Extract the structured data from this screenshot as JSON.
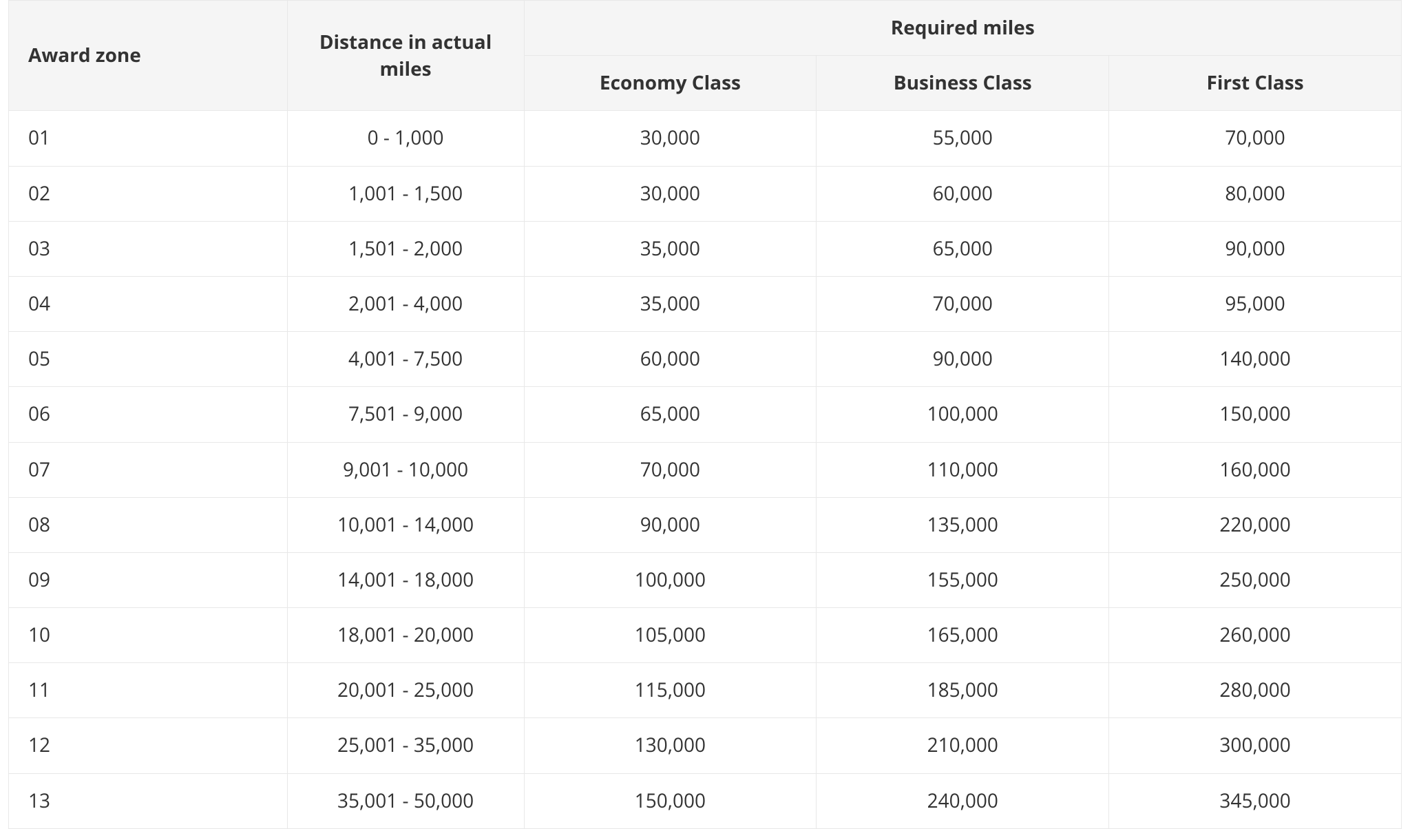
{
  "table": {
    "type": "table",
    "background_color": "#ffffff",
    "header_background_color": "#f5f5f5",
    "border_color": "#e8e8e8",
    "text_color": "#333333",
    "header_font_weight": 700,
    "body_font_weight": 400,
    "font_size_pt": 21,
    "column_widths_pct": [
      20,
      17,
      21,
      21,
      21
    ],
    "columns": {
      "award_zone": "Award zone",
      "distance": "Distance in actual miles",
      "required_miles": "Required miles",
      "economy": "Economy Class",
      "business": "Business Class",
      "first": "First Class"
    },
    "rows": [
      {
        "zone": "01",
        "distance": "0 - 1,000",
        "economy": "30,000",
        "business": "55,000",
        "first": "70,000"
      },
      {
        "zone": "02",
        "distance": "1,001 - 1,500",
        "economy": "30,000",
        "business": "60,000",
        "first": "80,000"
      },
      {
        "zone": "03",
        "distance": "1,501 - 2,000",
        "economy": "35,000",
        "business": "65,000",
        "first": "90,000"
      },
      {
        "zone": "04",
        "distance": "2,001 - 4,000",
        "economy": "35,000",
        "business": "70,000",
        "first": "95,000"
      },
      {
        "zone": "05",
        "distance": "4,001 - 7,500",
        "economy": "60,000",
        "business": "90,000",
        "first": "140,000"
      },
      {
        "zone": "06",
        "distance": "7,501 - 9,000",
        "economy": "65,000",
        "business": "100,000",
        "first": "150,000"
      },
      {
        "zone": "07",
        "distance": "9,001 - 10,000",
        "economy": "70,000",
        "business": "110,000",
        "first": "160,000"
      },
      {
        "zone": "08",
        "distance": "10,001 - 14,000",
        "economy": "90,000",
        "business": "135,000",
        "first": "220,000"
      },
      {
        "zone": "09",
        "distance": "14,001 - 18,000",
        "economy": "100,000",
        "business": "155,000",
        "first": "250,000"
      },
      {
        "zone": "10",
        "distance": "18,001 - 20,000",
        "economy": "105,000",
        "business": "165,000",
        "first": "260,000"
      },
      {
        "zone": "11",
        "distance": "20,001 - 25,000",
        "economy": "115,000",
        "business": "185,000",
        "first": "280,000"
      },
      {
        "zone": "12",
        "distance": "25,001 - 35,000",
        "economy": "130,000",
        "business": "210,000",
        "first": "300,000"
      },
      {
        "zone": "13",
        "distance": "35,001 - 50,000",
        "economy": "150,000",
        "business": "240,000",
        "first": "345,000"
      }
    ]
  }
}
